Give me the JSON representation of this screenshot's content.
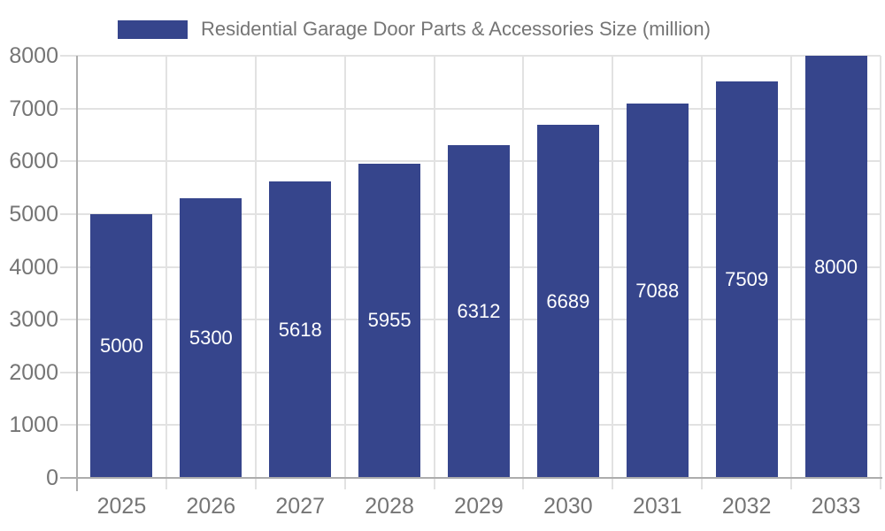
{
  "legend": {
    "label": "Residential Garage Door Parts & Accessories Size (million)"
  },
  "chart_data": {
    "type": "bar",
    "series_name": "Residential Garage Door Parts & Accessories Size (million)",
    "categories": [
      "2025",
      "2026",
      "2027",
      "2028",
      "2029",
      "2030",
      "2031",
      "2032",
      "2033"
    ],
    "values": [
      5000,
      5300,
      5618,
      5955,
      6312,
      6689,
      7088,
      7509,
      8000
    ],
    "bar_value_labels": [
      "5000",
      "5300",
      "5618",
      "5955",
      "6312",
      "6689",
      "7088",
      "7509",
      "8000"
    ],
    "title": "",
    "xlabel": "",
    "ylabel": "",
    "ylim": [
      0,
      8000
    ],
    "yticks": [
      0,
      1000,
      2000,
      3000,
      4000,
      5000,
      6000,
      7000,
      8000
    ],
    "grid": true,
    "legend_position": "top",
    "colors": {
      "bar": "#36458C",
      "bar_label": "#ffffff",
      "axis_text": "#757575",
      "axis_line": "#adadad",
      "grid_line": "#e2e2e2",
      "legend_text": "#757575",
      "background": "#ffffff"
    }
  }
}
